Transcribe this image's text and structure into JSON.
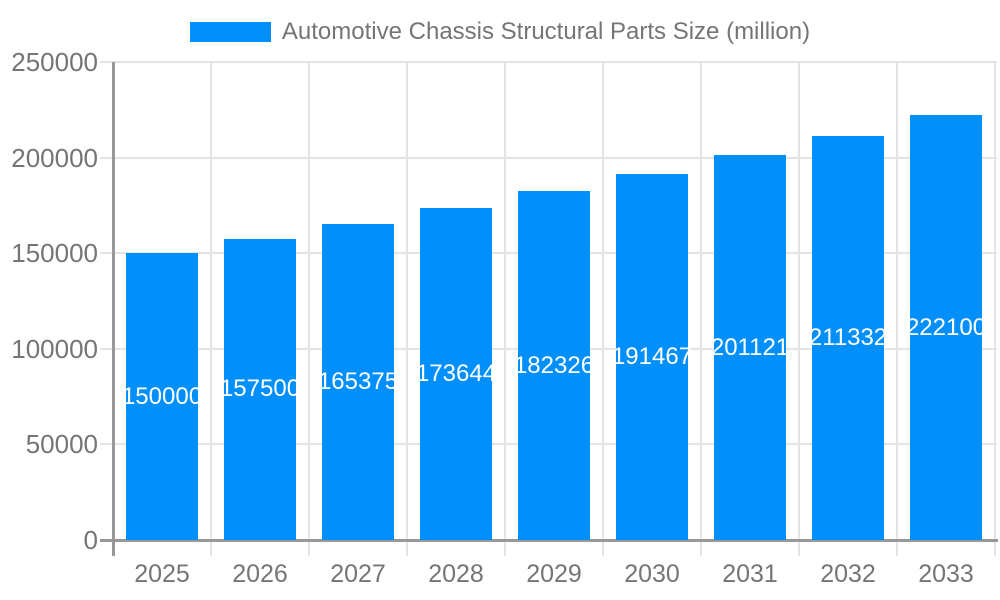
{
  "chart_data": {
    "type": "bar",
    "title": "Automotive Chassis Structural Parts Size (million)",
    "categories": [
      "2025",
      "2026",
      "2027",
      "2028",
      "2029",
      "2030",
      "2031",
      "2032",
      "2033"
    ],
    "values": [
      150000,
      157500,
      165375,
      173644,
      182326,
      191467,
      201121,
      211332,
      222100
    ],
    "bar_value_labels": [
      "150000",
      "157500",
      "165375",
      "173644",
      "182326",
      "191467",
      "201121",
      "211332",
      "222100"
    ],
    "y_tick_values": [
      0,
      50000,
      100000,
      150000,
      200000,
      250000
    ],
    "y_tick_labels": [
      "0",
      "50000",
      "100000",
      "150000",
      "200000",
      "250000"
    ],
    "ylim": [
      0,
      250000
    ],
    "xlabel": "",
    "ylabel": "",
    "grid": true,
    "legend_position": "top",
    "colors": {
      "bar": "#008ffb",
      "axis_label": "#757575",
      "title": "#757575",
      "grid_line": "#e4e4e4",
      "axis_line": "#989898",
      "bar_label": "#ffffff",
      "background": "#ffffff"
    }
  }
}
